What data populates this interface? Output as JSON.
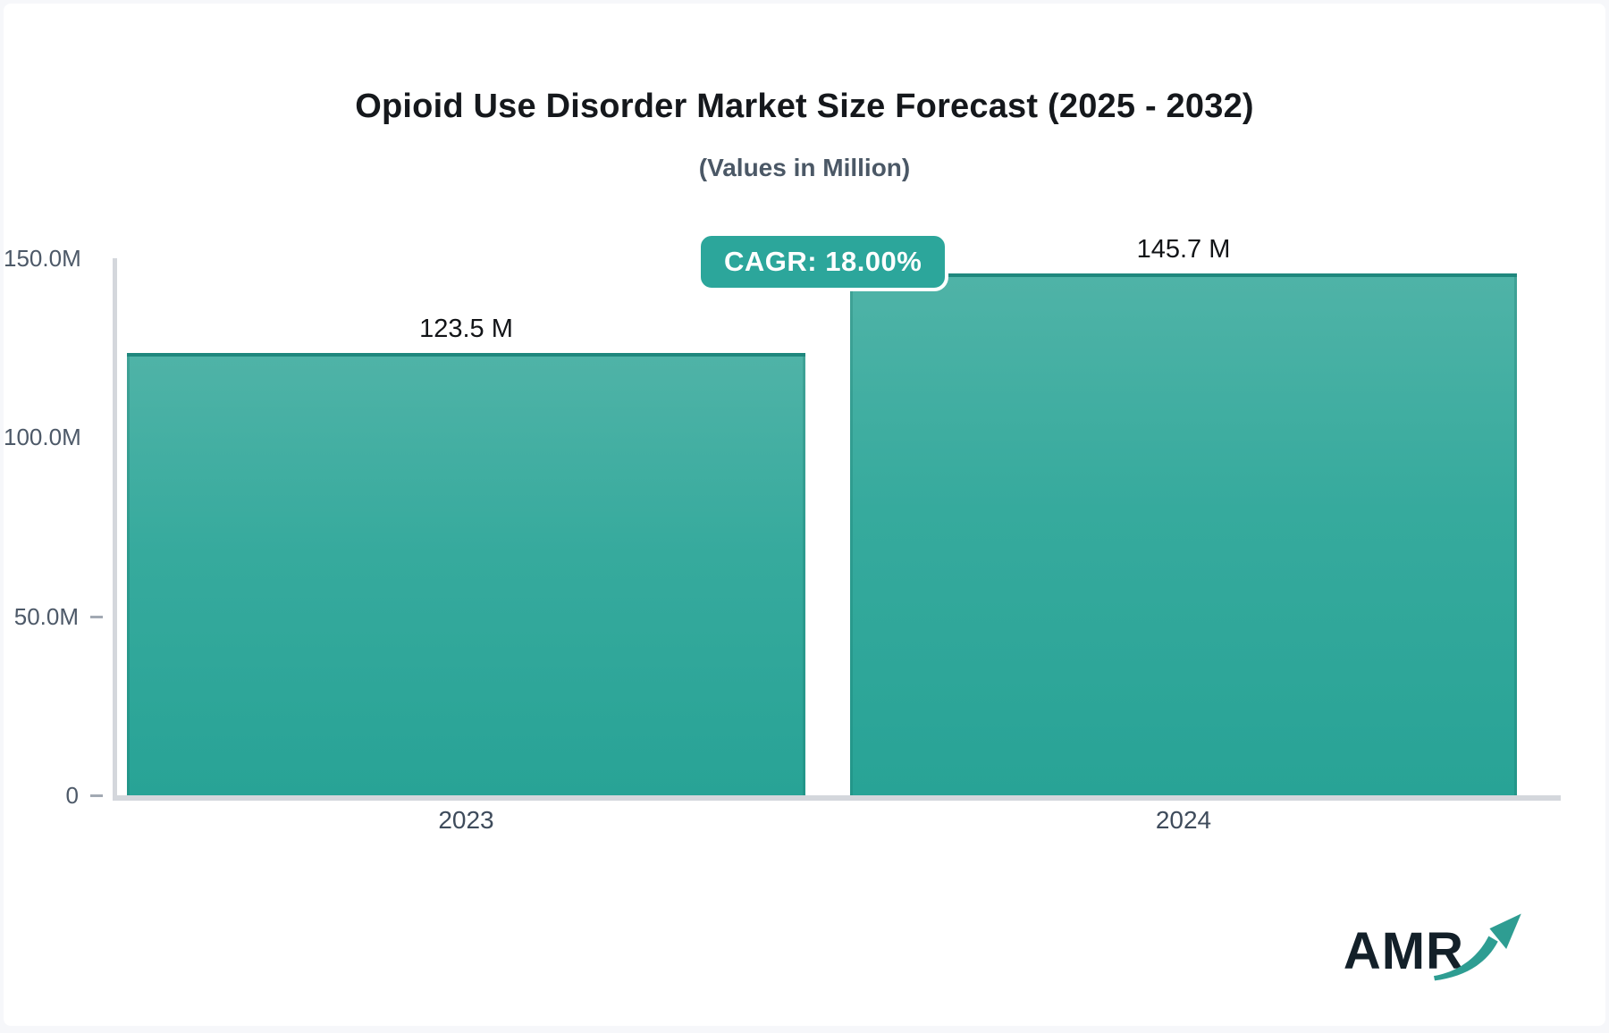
{
  "header": {
    "title": "Opioid Use Disorder Market Size Forecast (2025 - 2032)",
    "subtitle": "(Values in Million)"
  },
  "cagr_badge": {
    "label": "CAGR: 18.00%"
  },
  "logo": {
    "text": "AMR",
    "arrow_icon": "growth-arrow-icon"
  },
  "chart_data": {
    "type": "bar",
    "title": "Opioid Use Disorder Market Size Forecast (2025 - 2032)",
    "subtitle": "(Values in Million)",
    "categories": [
      "2023",
      "2024"
    ],
    "values": [
      123.5,
      145.7
    ],
    "value_labels": [
      "123.5 M",
      "145.7 M"
    ],
    "xlabel": "",
    "ylabel": "",
    "ylim": [
      0,
      150
    ],
    "yticks": [
      {
        "value": 150,
        "label": "150.0M",
        "dash": false
      },
      {
        "value": 100,
        "label": "100.0M",
        "dash": false
      },
      {
        "value": 50,
        "label": "50.0M",
        "dash": true
      },
      {
        "value": 0,
        "label": "0",
        "dash": true
      }
    ],
    "grid": "off",
    "legend": "none",
    "annotations": [
      "CAGR: 18.00%"
    ],
    "colors": {
      "bar_gradient_top": "#4FB3A7",
      "bar_gradient_bottom": "#28A396",
      "bar_top_border": "#1F877D",
      "badge_bg": "#2CA69B",
      "axis_line": "#D4D7DC",
      "tick_text": "#4D5968",
      "x_label_text": "#3E4B5B",
      "title_text": "#15181C",
      "subtitle_text": "#4B5866",
      "logo_text": "#132029",
      "logo_arrow": "#2E9D92"
    }
  }
}
